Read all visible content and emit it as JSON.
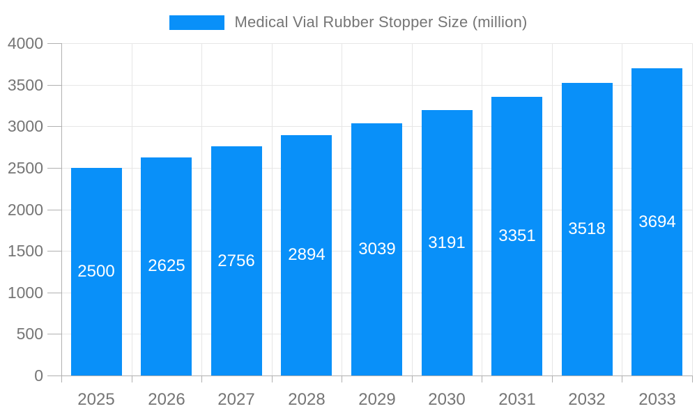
{
  "legend": {
    "label": "Medical Vial Rubber Stopper Size (million)"
  },
  "chart_data": {
    "type": "bar",
    "title": "Medical Vial Rubber Stopper Size (million)",
    "categories": [
      "2025",
      "2026",
      "2027",
      "2028",
      "2029",
      "2030",
      "2031",
      "2032",
      "2033"
    ],
    "values": [
      2500,
      2625,
      2756,
      2894,
      3039,
      3191,
      3351,
      3518,
      3694
    ],
    "xlabel": "",
    "ylabel": "",
    "ylim": [
      0,
      4000
    ],
    "ytick_step": 500,
    "ytick_labels": [
      "0",
      "500",
      "1000",
      "1500",
      "2000",
      "2500",
      "3000",
      "3500",
      "4000"
    ],
    "grid": true,
    "legend_position": "top-center",
    "value_labels": "inside-vertical-center"
  },
  "colors": {
    "bar": "#0990f9",
    "grid": "#e6e6e6",
    "axis": "#b0b0b0",
    "text": "#757575",
    "bar_label": "#ffffff",
    "background": "#ffffff"
  }
}
